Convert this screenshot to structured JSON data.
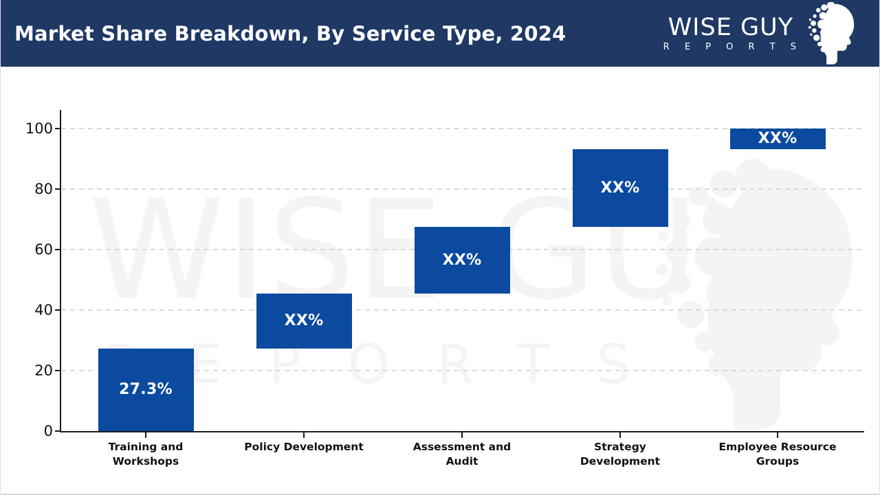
{
  "header": {
    "title": "Market Share Breakdown, By Service Type, 2024",
    "background": "#1f3864",
    "logo": {
      "wise_guy": "WISE GUY",
      "reports": "R E P O R T S"
    }
  },
  "watermark": {
    "wise_guy": "WISE GUY",
    "reports": "REPORTS"
  },
  "chart_data": {
    "type": "bar",
    "subtype": "waterfall",
    "title": "Market Share Breakdown, By Service Type, 2024",
    "xlabel": "",
    "ylabel": "",
    "ylim": [
      0,
      100
    ],
    "yticks": [
      0,
      20,
      40,
      60,
      80,
      100
    ],
    "grid": "horizontal-dashed",
    "legend": "none",
    "bar_color": "#0b4a9f",
    "grid_color": "#d9d9d9",
    "categories": [
      "Training and Workshops",
      "Policy Development",
      "Assessment and Audit",
      "Strategy Development",
      "Employee Resource Groups"
    ],
    "segments": [
      {
        "category": "Training and Workshops",
        "category_lines": [
          "Training and",
          "Workshops"
        ],
        "start": 0,
        "end": 27.3,
        "label": "27.3%"
      },
      {
        "category": "Policy Development",
        "category_lines": [
          "Policy Development"
        ],
        "start": 27.3,
        "end": 45.5,
        "label": "XX%"
      },
      {
        "category": "Assessment and Audit",
        "category_lines": [
          "Assessment and",
          "Audit"
        ],
        "start": 45.5,
        "end": 67.4,
        "label": "XX%"
      },
      {
        "category": "Strategy Development",
        "category_lines": [
          "Strategy",
          "Development"
        ],
        "start": 67.4,
        "end": 93.0,
        "label": "XX%"
      },
      {
        "category": "Employee Resource Groups",
        "category_lines": [
          "Employee Resource",
          "Groups"
        ],
        "start": 93.0,
        "end": 100,
        "label": "XX%"
      }
    ]
  }
}
